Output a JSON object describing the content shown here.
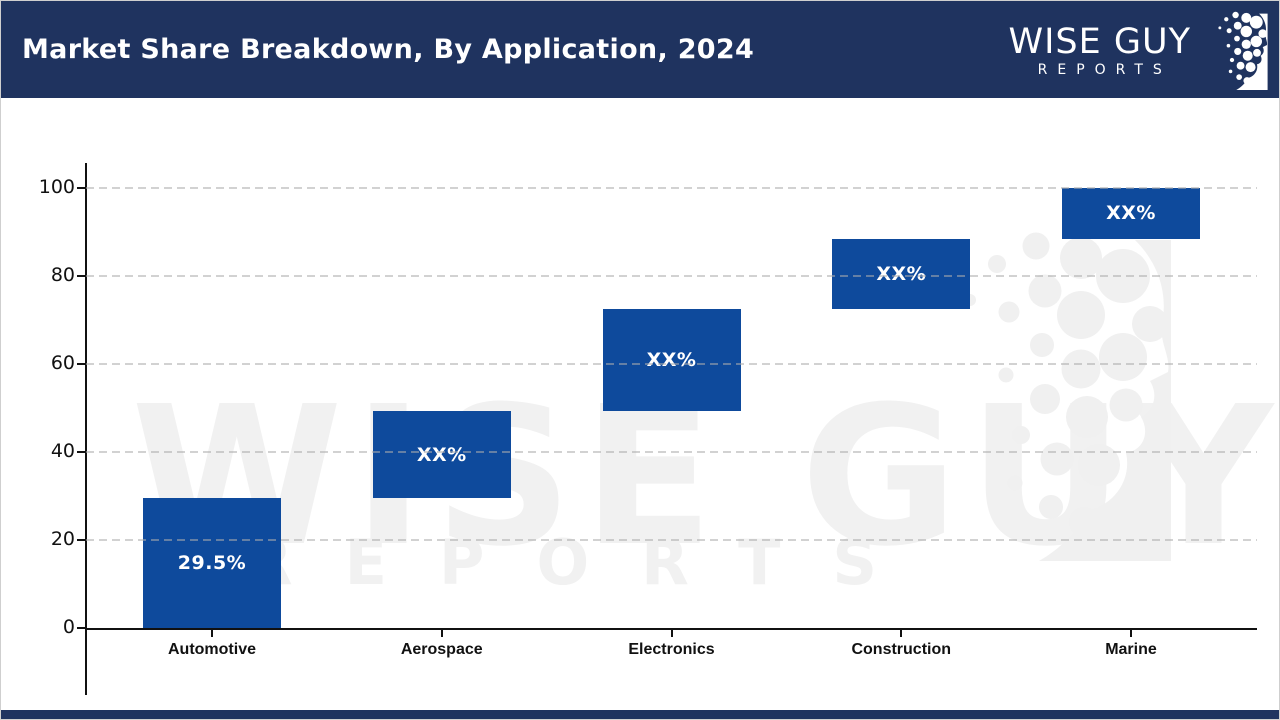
{
  "header": {
    "title": "Market Share Breakdown, By Application, 2024",
    "logo": {
      "line1": "WISE GUY",
      "line2": "REPORTS"
    }
  },
  "watermark": {
    "line1": "WISE GUY",
    "line2": "REPORTS"
  },
  "colors": {
    "header_bg": "#1f335f",
    "bar": "#0e4a9c",
    "watermark": "#f1f1f1",
    "axis": "#111111"
  },
  "chart_data": {
    "type": "bar",
    "subtype": "waterfall",
    "title": "Market Share Breakdown, By Application, 2024",
    "categories": [
      "Automotive",
      "Aerospace",
      "Electronics",
      "Construction",
      "Marine"
    ],
    "series": [
      {
        "name": "Market share (%)",
        "segments": [
          {
            "category": "Automotive",
            "start": 0,
            "end": 29.5,
            "label": "29.5%"
          },
          {
            "category": "Aerospace",
            "start": 29.5,
            "end": 49.3,
            "label": "XX%"
          },
          {
            "category": "Electronics",
            "start": 49.3,
            "end": 72.5,
            "label": "XX%"
          },
          {
            "category": "Construction",
            "start": 72.5,
            "end": 88.5,
            "label": "XX%"
          },
          {
            "category": "Marine",
            "start": 88.5,
            "end": 100,
            "label": "XX%"
          }
        ]
      }
    ],
    "bar_value_labels": [
      "29.5%",
      "XX%",
      "XX%",
      "XX%",
      "XX%"
    ],
    "xlabel": "",
    "ylabel": "",
    "ylim": [
      0,
      100
    ],
    "yticks": [
      0,
      20,
      40,
      60,
      80,
      100
    ],
    "grid": "horizontal-dashed",
    "legend_position": "none"
  }
}
